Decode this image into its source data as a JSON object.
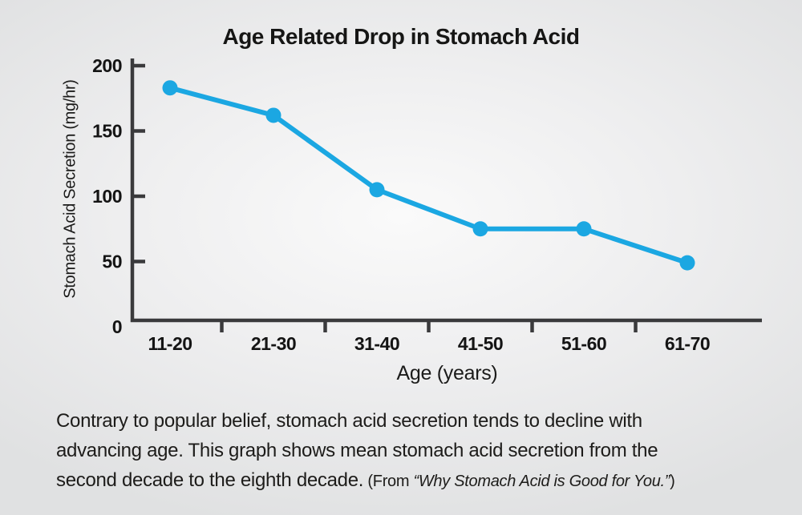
{
  "title": "Age Related Drop in Stomach Acid",
  "chart_data": {
    "type": "line",
    "title": "Age Related Drop in Stomach Acid",
    "categories": [
      "11-20",
      "21-30",
      "31-40",
      "41-50",
      "51-60",
      "61-70"
    ],
    "values": [
      183,
      162,
      105,
      75,
      75,
      49
    ],
    "xlabel": "Age (years)",
    "ylabel": "Stomach Acid Secretion (mg/hr)",
    "ylim": [
      0,
      200
    ],
    "yticks": [
      0,
      50,
      100,
      150,
      200
    ],
    "grid": false,
    "legend": false,
    "marker": "circle",
    "line_color": "#1ba7e2",
    "axis_color": "#3a3a3c",
    "text_color": "#141414"
  },
  "caption": {
    "line1": "Contrary to popular belief, stomach acid secretion tends to decline with",
    "line2": "advancing age. This graph shows mean stomach acid secretion from the",
    "line3_main": "second decade to the eighth decade.",
    "line3_cite_prefix": " (From ",
    "line3_cite_italic": "“Why Stomach Acid is Good for You.”",
    "line3_cite_suffix": ")"
  }
}
